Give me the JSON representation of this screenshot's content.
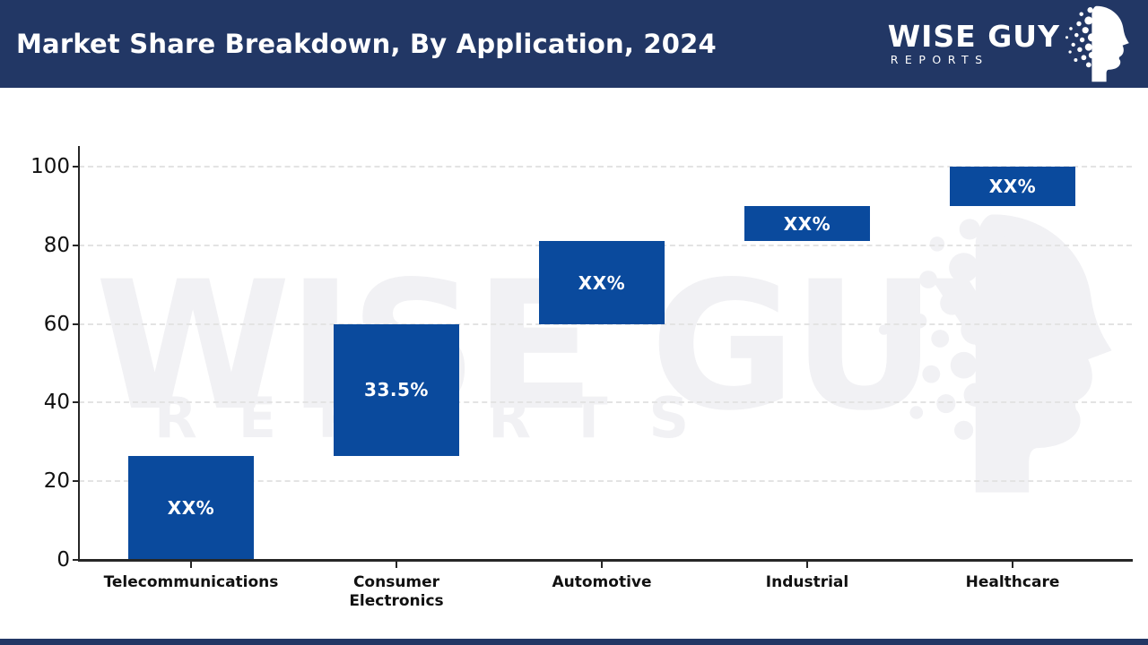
{
  "header": {
    "title": "Market Share Breakdown, By Application, 2024",
    "bg_color": "#223765",
    "logo": {
      "name": "WISE GUY",
      "subtitle": "REPORTS",
      "face_icon": "dotted-head-profile-icon"
    }
  },
  "watermark": {
    "text": "WISE GUY",
    "subtext": "REPORTS",
    "color": "#f1f1f4"
  },
  "chart_data": {
    "type": "bar",
    "subtype": "waterfall",
    "title": "Market Share Breakdown, By Application, 2024",
    "categories": [
      "Telecommunications",
      "Consumer Electronics",
      "Automotive",
      "Industrial",
      "Healthcare"
    ],
    "category_label_lines": [
      [
        "Telecommunications"
      ],
      [
        "Consumer",
        "Electronics"
      ],
      [
        "Automotive"
      ],
      [
        "Industrial"
      ],
      [
        "Healthcare"
      ]
    ],
    "segments": [
      {
        "category": "Telecommunications",
        "start": 0,
        "end": 26.5,
        "value": 26.5,
        "label": "XX%"
      },
      {
        "category": "Consumer Electronics",
        "start": 26.5,
        "end": 60,
        "value": 33.5,
        "label": "33.5%"
      },
      {
        "category": "Automotive",
        "start": 60,
        "end": 81,
        "value": 21,
        "label": "XX%"
      },
      {
        "category": "Industrial",
        "start": 81,
        "end": 90,
        "value": 9,
        "label": "XX%"
      },
      {
        "category": "Healthcare",
        "start": 90,
        "end": 100,
        "value": 10,
        "label": "XX%"
      }
    ],
    "y_ticks": [
      0,
      20,
      40,
      60,
      80,
      100
    ],
    "ylim": [
      0,
      105
    ],
    "xlabel": "",
    "ylabel": "",
    "grid": "horizontal-dashed",
    "legend": "none",
    "bar_color": "#0a4a9d",
    "bar_label_color": "#ffffff",
    "axis_color": "#262626",
    "grid_color": "#e3e3e3",
    "tick_label_color": "#111111"
  },
  "footer": {
    "bg_color": "#223765"
  }
}
